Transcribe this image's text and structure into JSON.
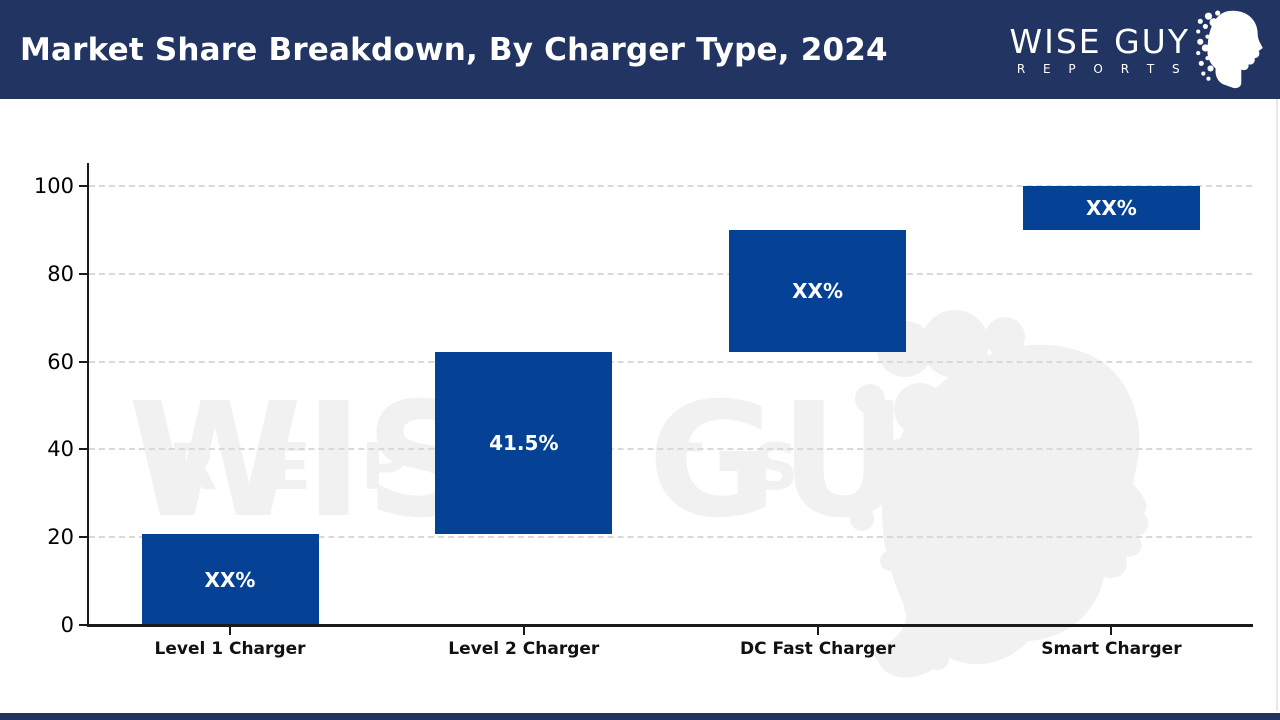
{
  "header": {
    "title": "Market Share Breakdown, By Charger Type, 2024",
    "logo": {
      "line1": "WISE GUY",
      "line2": "R E P O R T S"
    }
  },
  "watermark": {
    "line1": "WISE GUY",
    "line2": "REPORTS"
  },
  "colors": {
    "header_navy": "#213462",
    "bar_blue": "#054296",
    "gridline_gray": "#d9d9d9",
    "watermark_gray": "#f1f1f1",
    "axis_black": "#1a1a1a"
  },
  "chart_data": {
    "type": "bar",
    "subtype": "waterfall",
    "title": "Market Share Breakdown, By Charger Type, 2024",
    "categories": [
      "Level 1 Charger",
      "Level 2 Charger",
      "DC Fast Charger",
      "Smart Charger"
    ],
    "bars": [
      {
        "category": "Level 1 Charger",
        "label": "XX%",
        "start": 0,
        "end": 20.7
      },
      {
        "category": "Level 2 Charger",
        "label": "41.5%",
        "start": 20.7,
        "end": 62.2
      },
      {
        "category": "DC Fast Charger",
        "label": "XX%",
        "start": 62.2,
        "end": 90.0
      },
      {
        "category": "Smart Charger",
        "label": "XX%",
        "start": 90.0,
        "end": 100.0
      }
    ],
    "ylabel": "",
    "xlabel": "",
    "yticks": [
      0,
      20,
      40,
      60,
      80,
      100
    ],
    "ylim": [
      0,
      105.2
    ],
    "grid": "horizontal-dashed",
    "legend": "none",
    "bar_color_hex": "#054296",
    "bar_label_color_hex": "#ffffff"
  }
}
